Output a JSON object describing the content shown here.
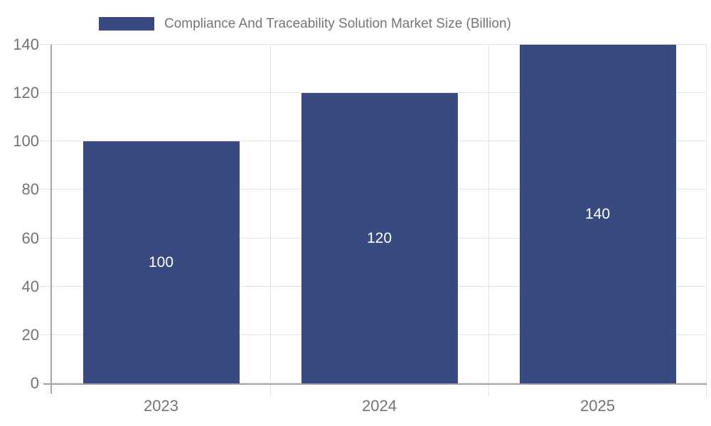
{
  "chart_data": {
    "type": "bar",
    "title": "Compliance And Traceability Solution Market Size (Billion)",
    "legend": {
      "position": "top",
      "label": "Compliance And Traceability Solution Market Size (Billion)"
    },
    "categories": [
      "2023",
      "2024",
      "2025"
    ],
    "values": [
      100,
      120,
      140
    ],
    "bar_value_labels": [
      "100",
      "120",
      "140"
    ],
    "xlabel": "",
    "ylabel": "",
    "ylim": [
      0,
      140
    ],
    "yticks": [
      0,
      20,
      40,
      60,
      80,
      100,
      120,
      140
    ],
    "grid": true,
    "colors": {
      "bar": "#384A7F",
      "bar_label": "#FFFFFF",
      "title_text": "#757575",
      "tick_text": "#737373",
      "gridline": "#E4E4E4",
      "axis": "#A6A6A6"
    }
  }
}
